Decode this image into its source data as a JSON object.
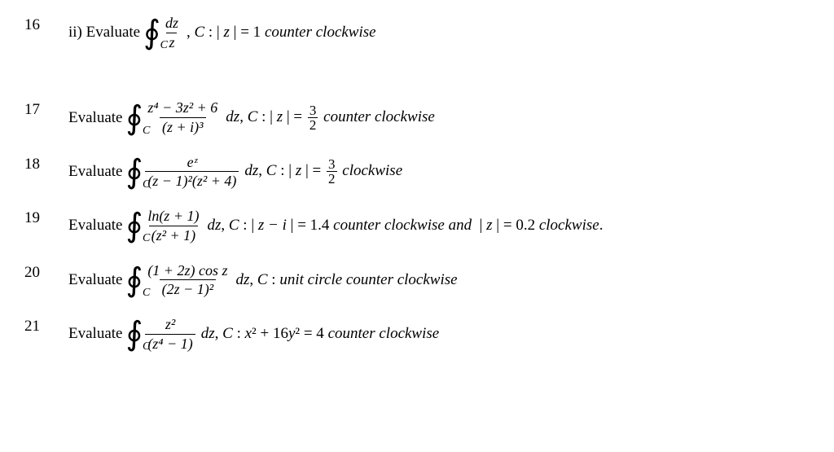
{
  "problems": [
    {
      "number": "16",
      "prefix": "ii) Evaluate ",
      "oint_sub": "C",
      "frac_num": "dz",
      "frac_den": "z",
      "after_html": ", <span class='ital'>C</span> : | <span class='ital'>z</span> | = 1 <span class='ital'>counter clockwise</span>",
      "period": "."
    },
    {
      "number": "17",
      "prefix": "Evaluate ",
      "oint_sub": "C",
      "frac_num": "z⁴ − 3z² + 6",
      "frac_den": "(z + i)³",
      "after_html": " <span class='ital'>dz</span>, <span class='ital'>C</span> : | <span class='ital'>z</span> | = <span class='smallfrac'><span class='n'>3</span><span class='d'>2</span></span> <span class='ital'>counter clockwise</span>",
      "period": "."
    },
    {
      "number": "18",
      "prefix": "Evaluate ",
      "oint_sub": "C",
      "frac_num": "eᶻ",
      "frac_den": "(z − 1)²(z² + 4)",
      "after_html": " <span class='ital'>dz</span>, <span class='ital'>C</span> : | <span class='ital'>z</span> | = <span class='smallfrac'><span class='n'>3</span><span class='d'>2</span></span> <span class='ital'>clockwise</span>",
      "period": "."
    },
    {
      "number": "19",
      "prefix": "Evaluate ",
      "oint_sub": "C",
      "frac_num": "ln(z + 1)",
      "frac_den": "(z² + 1)",
      "after_html": " <span class='ital'>dz</span>, <span class='ital'>C</span> : | <span class='ital'>z − i</span> | = 1.4 <span class='ital'>counter clockwise and</span> &nbsp;| <span class='ital'>z</span> | = 0.2 <span class='ital'>clockwise</span>.",
      "period": ""
    },
    {
      "number": "20",
      "prefix": "Evaluate ",
      "oint_sub": "C",
      "frac_num": "(1 + 2z) cos z",
      "frac_den": "(2z − 1)²",
      "after_html": " <span class='ital'>dz</span>, <span class='ital'>C</span> : <span class='ital'>unit circle counter clockwise</span>",
      "period": "."
    },
    {
      "number": "21",
      "prefix": "Evaluate ",
      "oint_sub": "C",
      "frac_num": "z²",
      "frac_den": "(z⁴ − 1)",
      "after_html": " <span class='ital'>dz</span>, <span class='ital'>C</span> : <span class='ital'>x</span>² + 16<span class='ital'>y</span>² = 4 <span class='ital'>counter clockwise</span>",
      "period": ""
    }
  ]
}
